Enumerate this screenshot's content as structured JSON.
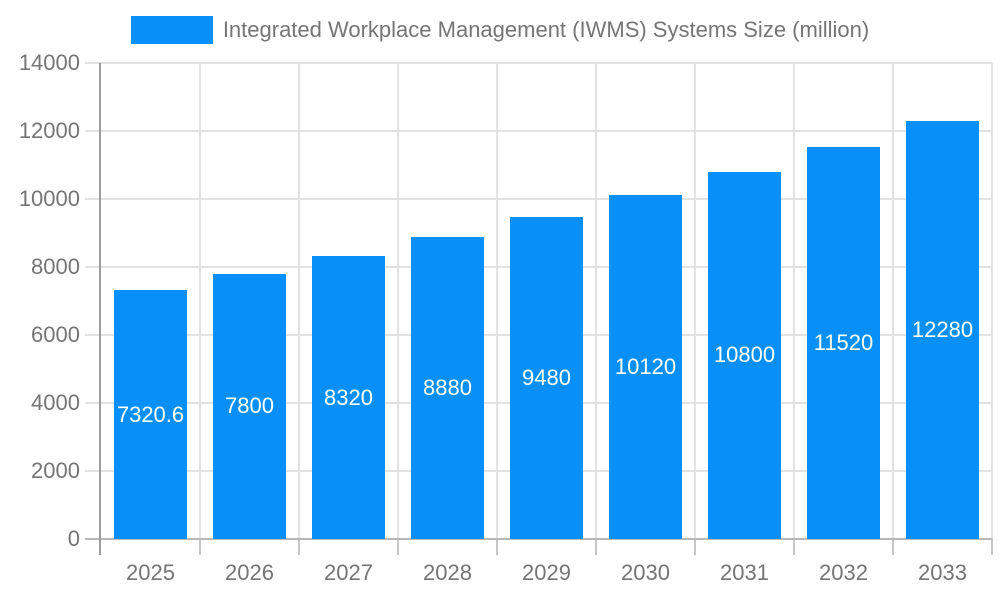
{
  "chart_data": {
    "type": "bar",
    "title": "Integrated Workplace Management (IWMS) Systems Size (million)",
    "legend_position": "top",
    "categories": [
      "2025",
      "2026",
      "2027",
      "2028",
      "2029",
      "2030",
      "2031",
      "2032",
      "2033"
    ],
    "series": [
      {
        "name": "Integrated Workplace Management (IWMS) Systems Size (million)",
        "values": [
          7320.6,
          7800,
          8320,
          8880,
          9480,
          10120,
          10800,
          11520,
          12280
        ]
      }
    ],
    "value_labels_shown": true,
    "xlabel": "",
    "ylabel": "",
    "ylim": [
      0,
      14000
    ],
    "yticks": [
      0,
      2000,
      4000,
      6000,
      8000,
      10000,
      12000,
      14000
    ],
    "grid": true,
    "colors": {
      "bar": "#0890f8",
      "grid_line": "#e2e2e2",
      "y_axis_line": "#9e9e9e",
      "x_axis_line": "#b8b8b8",
      "tick_mark": "#c6c6c6",
      "tick_text": "#757575",
      "value_label_text": "#ffffff",
      "background": "#ffffff"
    }
  }
}
